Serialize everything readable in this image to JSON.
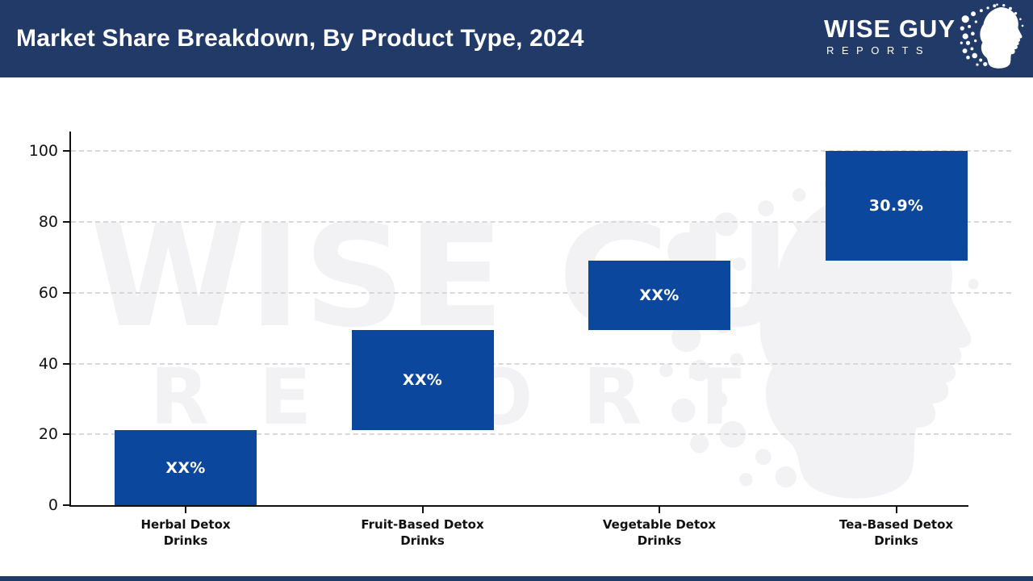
{
  "header": {
    "title": "Market Share Breakdown, By Product Type, 2024",
    "brand": {
      "name": "WISE GUY",
      "tagline": "REPORTS"
    }
  },
  "watermark": {
    "name": "WISE GUY",
    "tagline": "REPORTS"
  },
  "chart_data": {
    "type": "bar",
    "subtype": "floating-waterfall",
    "title": "Market Share Breakdown, By Product Type, 2024",
    "unit": "%",
    "categories": [
      {
        "line1": "Herbal Detox",
        "line2": "Drinks"
      },
      {
        "line1": "Fruit-Based Detox",
        "line2": "Drinks"
      },
      {
        "line1": "Vegetable Detox",
        "line2": "Drinks"
      },
      {
        "line1": "Tea-Based Detox",
        "line2": "Drinks"
      }
    ],
    "segments": [
      {
        "category": "Herbal Detox Drinks",
        "start": 0,
        "end": 21.2,
        "label": "XX%"
      },
      {
        "category": "Fruit-Based Detox Drinks",
        "start": 21.2,
        "end": 49.5,
        "label": "XX%"
      },
      {
        "category": "Vegetable Detox Drinks",
        "start": 49.5,
        "end": 69.1,
        "label": "XX%"
      },
      {
        "category": "Tea-Based Detox Drinks",
        "start": 69.1,
        "end": 100,
        "label": "30.9%"
      }
    ],
    "yticks": [
      0,
      20,
      40,
      60,
      80,
      100
    ],
    "ylim": [
      0,
      100
    ],
    "grid": "horizontal-dashed",
    "legend": "none",
    "bar_color": "#0C479E"
  },
  "colors": {
    "header_bg": "#223A68",
    "footer_bg": "#223A68",
    "bar": "#0C479E",
    "bar_label": "#FFFFFF",
    "watermark": "#F2F2F4",
    "gridline": "#D8D8D8",
    "axis": "#111111"
  }
}
